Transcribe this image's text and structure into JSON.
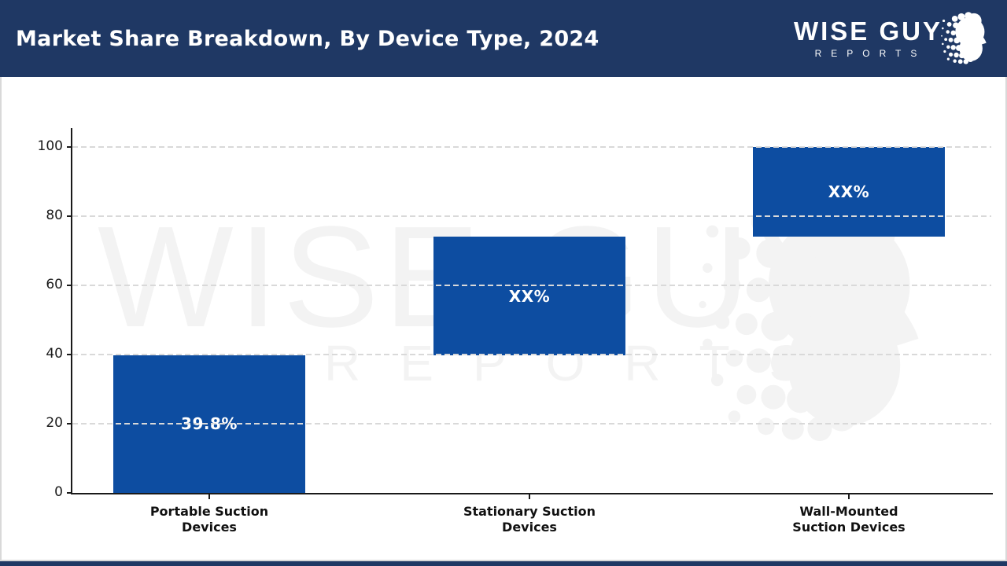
{
  "header": {
    "title": "Market Share Breakdown, By Device Type, 2024",
    "bg_color": "#1f3864",
    "logo": {
      "line1": "WISE GUY",
      "line2": "REPORTS"
    }
  },
  "watermark": {
    "line1": "WISE GUY",
    "line2": "REPORTS"
  },
  "chart_data": {
    "type": "bar",
    "variant": "waterfall-segments",
    "title": "Market Share Breakdown, By Device Type, 2024",
    "categories": [
      "Portable Suction\nDevices",
      "Stationary Suction\nDevices",
      "Wall-Mounted\nSuction Devices"
    ],
    "bars": [
      {
        "category": "Portable Suction Devices",
        "start": 0,
        "end": 39.8,
        "label": "39.8%"
      },
      {
        "category": "Stationary Suction Devices",
        "start": 39.8,
        "end": 74,
        "label": "XX%"
      },
      {
        "category": "Wall-Mounted Suction Devices",
        "start": 74,
        "end": 100,
        "label": "XX%"
      }
    ],
    "yticks": [
      0,
      20,
      40,
      60,
      80,
      100
    ],
    "ylim": [
      0,
      105
    ],
    "xlabel": "",
    "ylabel": "",
    "grid": "dashed-horizontal",
    "legend": "none",
    "bar_color": "#0d4da1",
    "bar_label_color": "#ffffff",
    "axis_color": "#1a1a1a"
  }
}
